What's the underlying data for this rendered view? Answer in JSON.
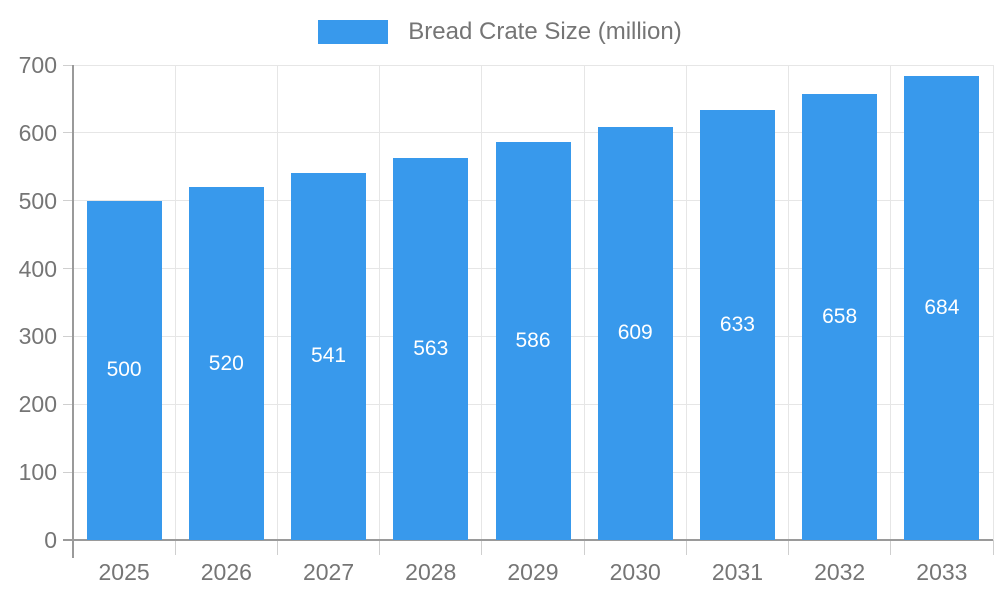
{
  "chart_data": {
    "type": "bar",
    "title": "",
    "legend_label": "Bread Crate Size (million)",
    "legend_position": "top",
    "categories": [
      "2025",
      "2026",
      "2027",
      "2028",
      "2029",
      "2030",
      "2031",
      "2032",
      "2033"
    ],
    "values": [
      500,
      520,
      541,
      563,
      586,
      609,
      633,
      658,
      684
    ],
    "xlabel": "",
    "ylabel": "",
    "ylim": [
      0,
      700
    ],
    "y_ticks": [
      0,
      100,
      200,
      300,
      400,
      500,
      600,
      700
    ],
    "grid": true,
    "bar_value_labels_inside": true
  },
  "colors": {
    "bar": "#3899EC",
    "bar_value_text": "#FFFFFF",
    "axis_text": "#757575",
    "axis_line": "#9A9A9A",
    "grid_line": "#E6E6E6",
    "tick_line": "#CFCFCF",
    "background": "#FFFFFF"
  }
}
